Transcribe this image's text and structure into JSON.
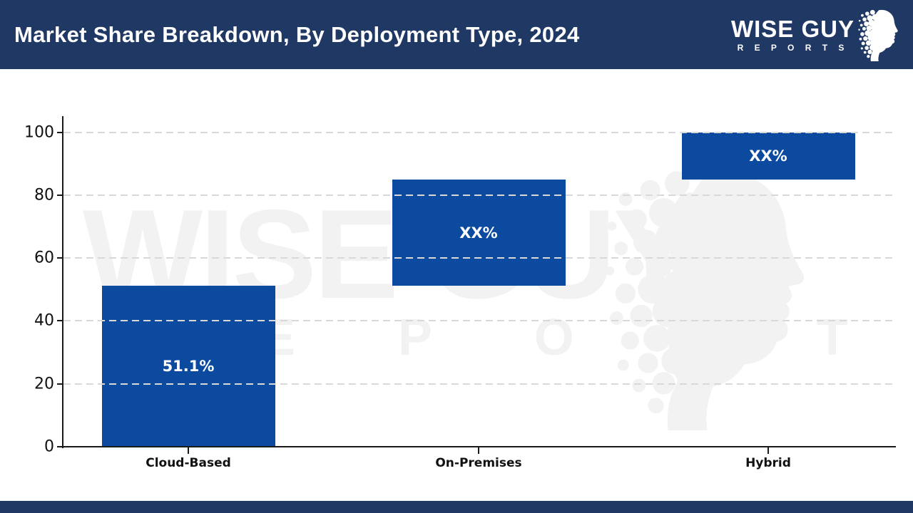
{
  "header": {
    "title": "Market Share Breakdown, By Deployment Type, 2024",
    "brand": {
      "line1": "WISE GUY",
      "line2": "R E P O R T S",
      "head_icon": "dotted-head-profile-icon"
    }
  },
  "watermark": {
    "line1": "WISE GUY",
    "line2": "R E P O R T S",
    "head_icon": "dotted-head-profile-icon"
  },
  "chart_data": {
    "type": "bar",
    "subtype": "floating-stacked-cumulative",
    "title": "Market Share Breakdown, By Deployment Type, 2024",
    "categories": [
      "Cloud-Based",
      "On-Premises",
      "Hybrid"
    ],
    "series": [
      {
        "name": "Market Share (%)",
        "segments": [
          {
            "category": "Cloud-Based",
            "start": 0,
            "end": 51.1,
            "label": "51.1%"
          },
          {
            "category": "On-Premises",
            "start": 51.1,
            "end": 85,
            "label": "XX%"
          },
          {
            "category": "Hybrid",
            "start": 85,
            "end": 100,
            "label": "XX%"
          }
        ]
      }
    ],
    "ylim": [
      0,
      100
    ],
    "yticks": [
      0,
      20,
      40,
      60,
      80,
      100
    ],
    "xlabel": "",
    "ylabel": "",
    "grid": "horizontal-dashed",
    "legend": "none",
    "bar_color": "#0b4a9e",
    "bar_label_color": "#ffffff"
  },
  "colors": {
    "band": "#1f3864",
    "title_text": "#ffffff",
    "grid": "#d9d9d9",
    "axis": "#1a1a1a",
    "watermark": "#f2f2f2"
  }
}
